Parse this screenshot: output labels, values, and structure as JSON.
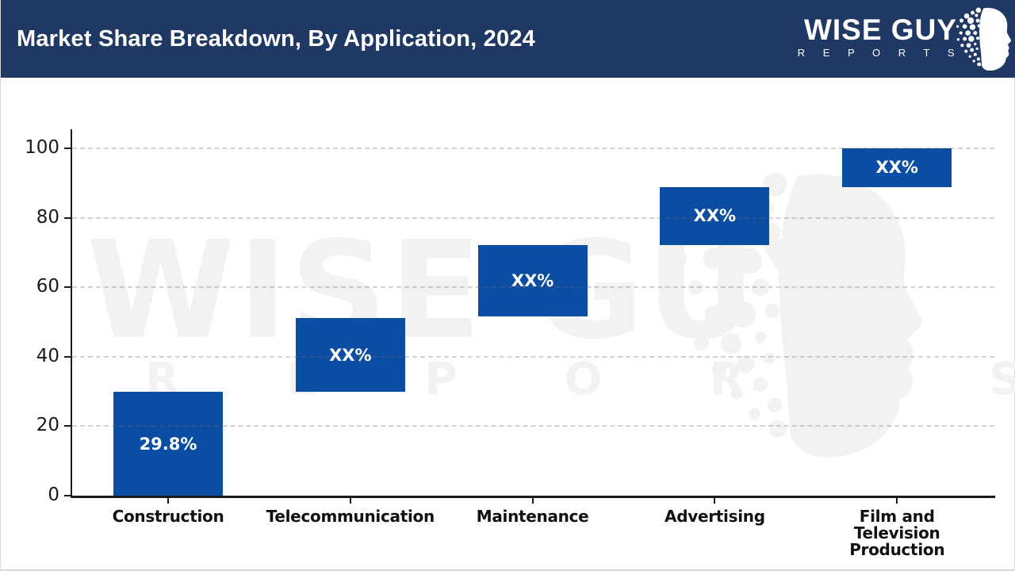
{
  "header": {
    "title": "Market Share Breakdown, By Application, 2024",
    "bg_color": "#1f3864",
    "logo": {
      "wordmark": "WISE GUY",
      "subtext": "REPORTS"
    }
  },
  "watermark": {
    "wordmark": "WISE GUY",
    "subtext": "R E P O R T S"
  },
  "chart_data": {
    "type": "bar",
    "subtype": "waterfall-style floating segments, cumulative market share",
    "title": "Market Share Breakdown, By Application, 2024",
    "categories": [
      "Construction",
      "Telecommunication",
      "Maintenance",
      "Advertising",
      "Film and Television Production"
    ],
    "series": [
      {
        "name": "Market share (%)",
        "segments": [
          {
            "category": "Construction",
            "start": 0,
            "end": 29.8,
            "label": "29.8%"
          },
          {
            "category": "Telecommunication",
            "start": 29.8,
            "end": 51.2,
            "label": "XX%"
          },
          {
            "category": "Maintenance",
            "start": 51.5,
            "end": 72.1,
            "label": "XX%"
          },
          {
            "category": "Advertising",
            "start": 72.1,
            "end": 88.9,
            "label": "XX%"
          },
          {
            "category": "Film and Television Production",
            "start": 88.9,
            "end": 100,
            "label": "XX%"
          }
        ]
      }
    ],
    "xlabel": "",
    "ylabel": "",
    "ylim": [
      0,
      100
    ],
    "yticks": [
      "0",
      "20",
      "40",
      "60",
      "80",
      "100"
    ],
    "grid": "horizontal dashed light-gray, drawn over bars",
    "legend": "none",
    "bar_color": "#0b4da2",
    "bar_label_color": "#ffffff",
    "axis_color": "#1a1a1a"
  }
}
